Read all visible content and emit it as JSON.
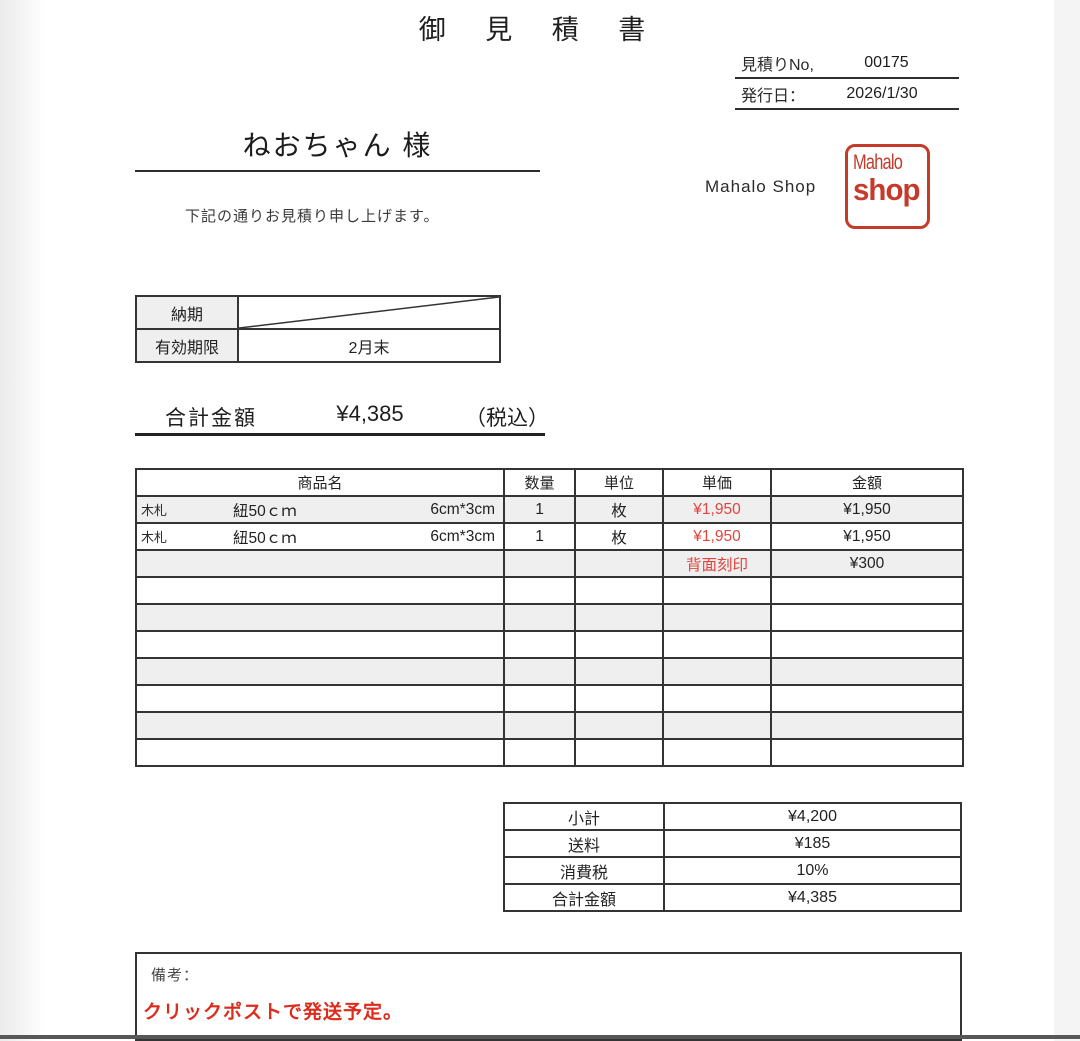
{
  "page": {
    "title": "御 見 積 書"
  },
  "meta": {
    "estimate_no_label": "見積りNo,",
    "estimate_no_value": "00175",
    "issue_date_label": "発行日：",
    "issue_date_value": "2026/1/30"
  },
  "customer": {
    "name": "ねおちゃん 様",
    "greeting": "下記の通りお見積り申し上げます。"
  },
  "shop": {
    "name": "Mahalo Shop",
    "stamp_line1": "Mahalo",
    "stamp_line2": "shop"
  },
  "terms": {
    "delivery_label": "納期",
    "delivery_value": "",
    "validity_label": "有効期限",
    "validity_value": "2月末"
  },
  "total_line": {
    "label": "合計金額",
    "amount": "¥4,385",
    "tax_note": "（税込）"
  },
  "items_table": {
    "headers": [
      "商品名",
      "数量",
      "単位",
      "単価",
      "金額"
    ],
    "rows": [
      {
        "name_left": "木札",
        "name_mid": "紐50ｃｍ",
        "name_right": "6cm*3cm",
        "qty": "1",
        "unit": "枚",
        "unit_price": "¥1,950",
        "unit_price_red": true,
        "amount": "¥1,950",
        "shaded": true,
        "amount_white": false
      },
      {
        "name_left": "木札",
        "name_mid": "紐50ｃｍ",
        "name_right": "6cm*3cm",
        "qty": "1",
        "unit": "枚",
        "unit_price": "¥1,950",
        "unit_price_red": true,
        "amount": "¥1,950",
        "shaded": false,
        "amount_white": false
      },
      {
        "name_left": "",
        "name_mid": "",
        "name_right": "",
        "qty": "",
        "unit": "",
        "unit_price": "背面刻印",
        "unit_price_red": true,
        "amount": "¥300",
        "shaded": true,
        "amount_white": false
      },
      {
        "name_left": "",
        "name_mid": "",
        "name_right": "",
        "qty": "",
        "unit": "",
        "unit_price": "",
        "unit_price_red": false,
        "amount": "",
        "shaded": false,
        "amount_white": false
      },
      {
        "name_left": "",
        "name_mid": "",
        "name_right": "",
        "qty": "",
        "unit": "",
        "unit_price": "",
        "unit_price_red": false,
        "amount": "",
        "shaded": true,
        "amount_white": true
      },
      {
        "name_left": "",
        "name_mid": "",
        "name_right": "",
        "qty": "",
        "unit": "",
        "unit_price": "",
        "unit_price_red": false,
        "amount": "",
        "shaded": false,
        "amount_white": false
      },
      {
        "name_left": "",
        "name_mid": "",
        "name_right": "",
        "qty": "",
        "unit": "",
        "unit_price": "",
        "unit_price_red": false,
        "amount": "",
        "shaded": true,
        "amount_white": false
      },
      {
        "name_left": "",
        "name_mid": "",
        "name_right": "",
        "qty": "",
        "unit": "",
        "unit_price": "",
        "unit_price_red": false,
        "amount": "",
        "shaded": false,
        "amount_white": false
      },
      {
        "name_left": "",
        "name_mid": "",
        "name_right": "",
        "qty": "",
        "unit": "",
        "unit_price": "",
        "unit_price_red": false,
        "amount": "",
        "shaded": true,
        "amount_white": false
      },
      {
        "name_left": "",
        "name_mid": "",
        "name_right": "",
        "qty": "",
        "unit": "",
        "unit_price": "",
        "unit_price_red": false,
        "amount": "",
        "shaded": false,
        "amount_white": false
      }
    ]
  },
  "summary": {
    "rows": [
      {
        "label": "小計",
        "value": "¥4,200"
      },
      {
        "label": "送料",
        "value": "¥185"
      },
      {
        "label": "消費税",
        "value": "10%"
      },
      {
        "label": "合計金額",
        "value": "¥4,385"
      }
    ]
  },
  "remarks": {
    "label": "備考：",
    "note": "クリックポストで発送予定。"
  },
  "colors": {
    "accent_red": "#e0453d",
    "stamp_red": "#c63a2c",
    "remarks_red": "#dd2b1c",
    "row_shade": "#efefef",
    "border": "#343434"
  }
}
